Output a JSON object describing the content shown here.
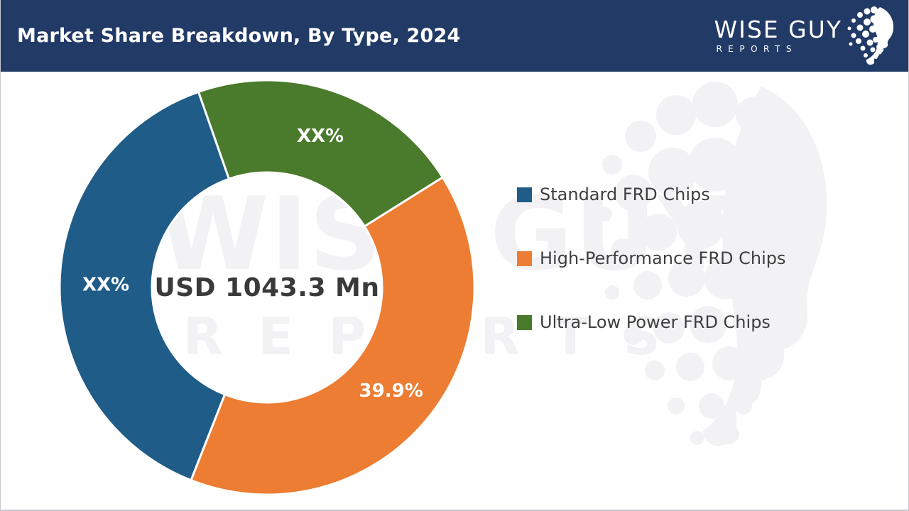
{
  "header": {
    "title": "Market Share Breakdown, By Type, 2024",
    "bg_color": "#213a66",
    "logo": {
      "line1": "WISE GUY",
      "line2": "REPORTS"
    }
  },
  "watermark": {
    "line1": "WISE GUY",
    "line2": "REPORTS"
  },
  "chart_data": {
    "type": "pie",
    "subtype": "donut",
    "title": "Market Share Breakdown, By Type, 2024",
    "center_label": "USD 1043.3 Mn",
    "legend_position": "right",
    "units": "percent of market share",
    "segments": [
      {
        "name": "Standard FRD Chips",
        "label": "XX%",
        "value": 38.7,
        "value_shown": false,
        "color": "#1f5c87",
        "start_deg": 201.5,
        "sweep_deg": 139.2
      },
      {
        "name": "High-Performance FRD Chips",
        "label": "39.9%",
        "value": 39.9,
        "value_shown": true,
        "color": "#ec7d33",
        "start_deg": 57.9,
        "sweep_deg": 143.6
      },
      {
        "name": "Ultra-Low Power FRD Chips",
        "label": "XX%",
        "value": 21.4,
        "value_shown": false,
        "color": "#4a7a2b",
        "start_deg": 340.7,
        "sweep_deg": 77.2
      }
    ]
  }
}
